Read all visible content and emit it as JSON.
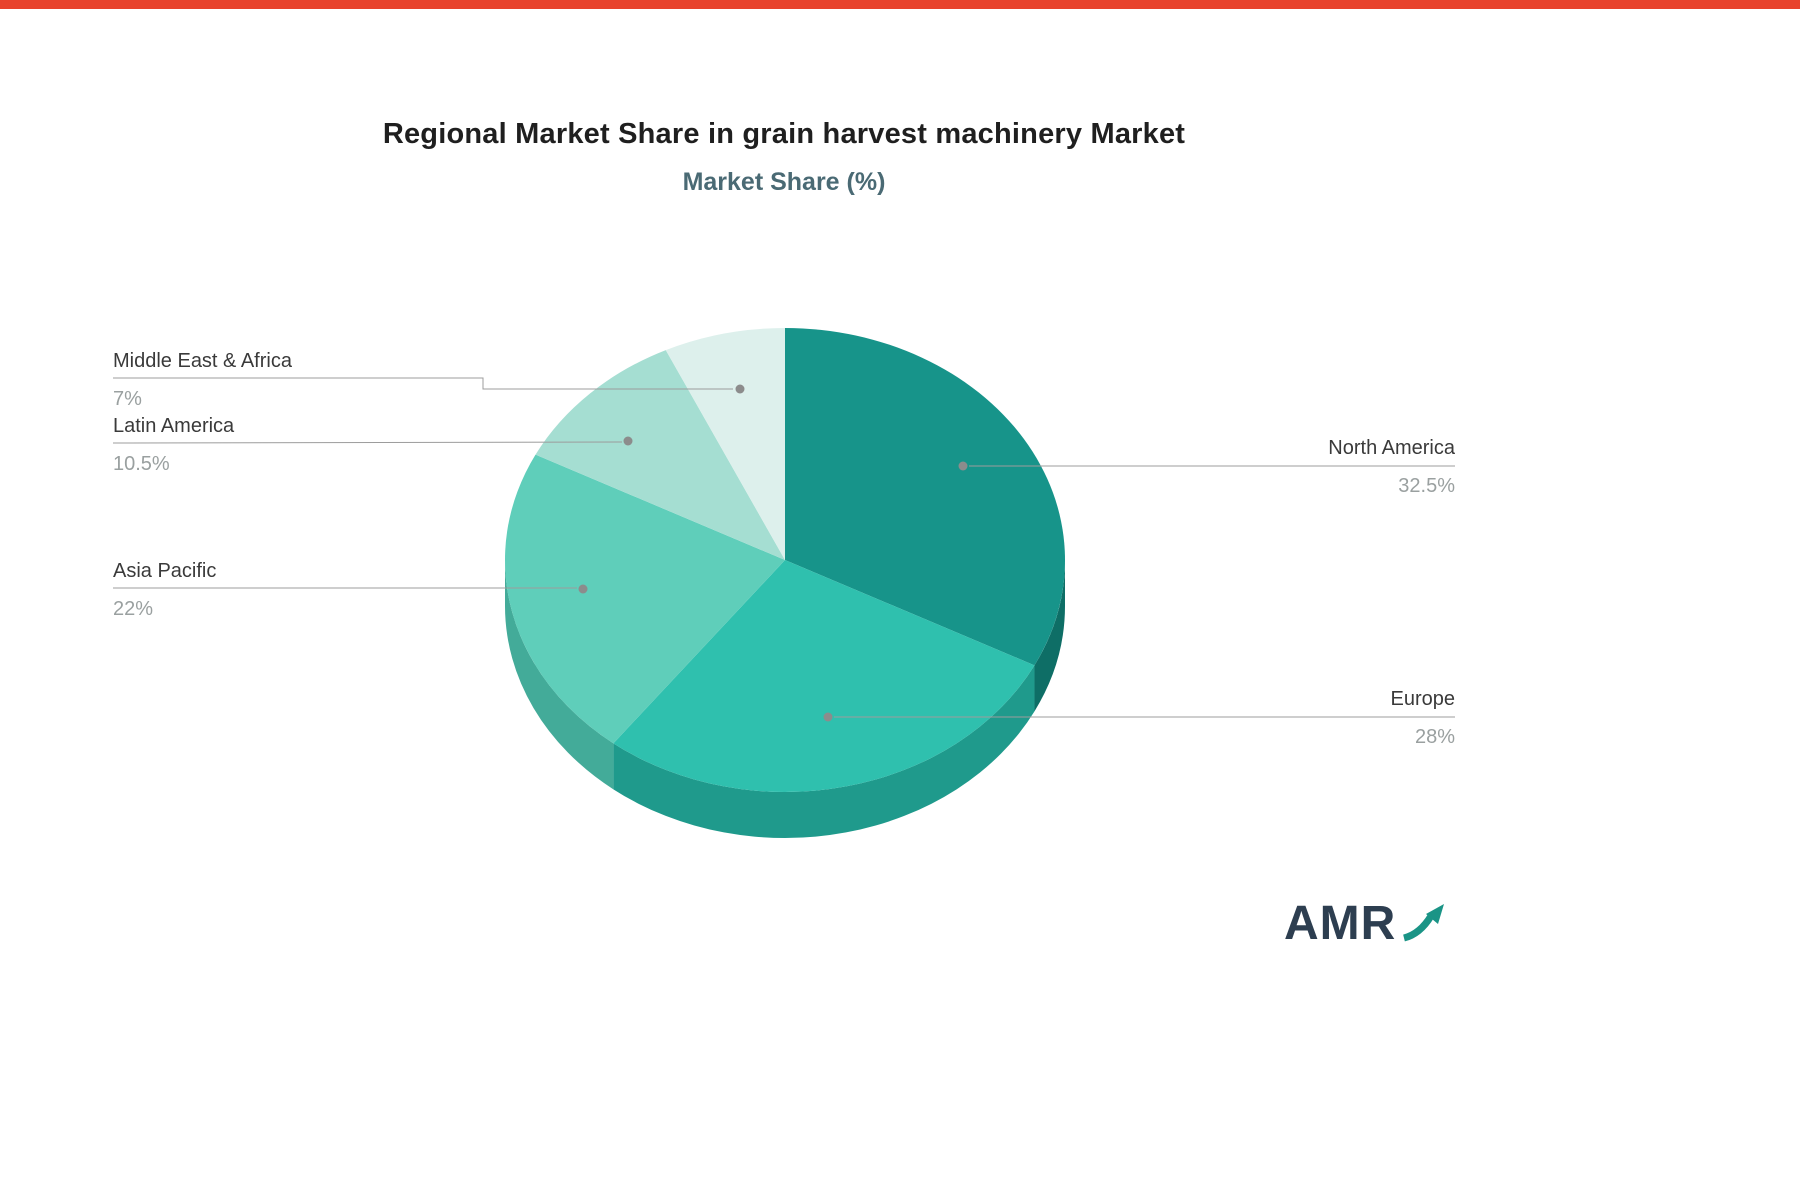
{
  "page": {
    "accent_top_bar": "#e8432d"
  },
  "title": "Regional Market Share in grain harvest machinery Market",
  "subtitle": "Market Share (%)",
  "logo": {
    "text": "AMR",
    "arrow_color": "#1a9486",
    "text_color": "#2d3e50"
  },
  "chart_data": {
    "type": "pie",
    "title": "Regional Market Share in grain harvest machinery Market",
    "subtitle": "Market Share (%)",
    "unit": "%",
    "start_angle_deg": 0,
    "direction": "clockwise",
    "effect": "3d-depth",
    "legend_position": "none",
    "slices": [
      {
        "label": "North America",
        "value": 32.5,
        "display": "32.5%",
        "color": "#17948a",
        "depth_color": "#0e6e66"
      },
      {
        "label": "Europe",
        "value": 28,
        "display": "28%",
        "color": "#2fc0ae",
        "depth_color": "#1f9a8c"
      },
      {
        "label": "Asia Pacific",
        "value": 22,
        "display": "22%",
        "color": "#5fceba",
        "depth_color": "#43ab99"
      },
      {
        "label": "Latin America",
        "value": 10.5,
        "display": "10.5%",
        "color": "#a5ded2",
        "depth_color": "#82c2b6"
      },
      {
        "label": "Middle East & Africa",
        "value": 7,
        "display": "7%",
        "color": "#ddf0ec",
        "depth_color": "#bcd9d4"
      }
    ]
  }
}
